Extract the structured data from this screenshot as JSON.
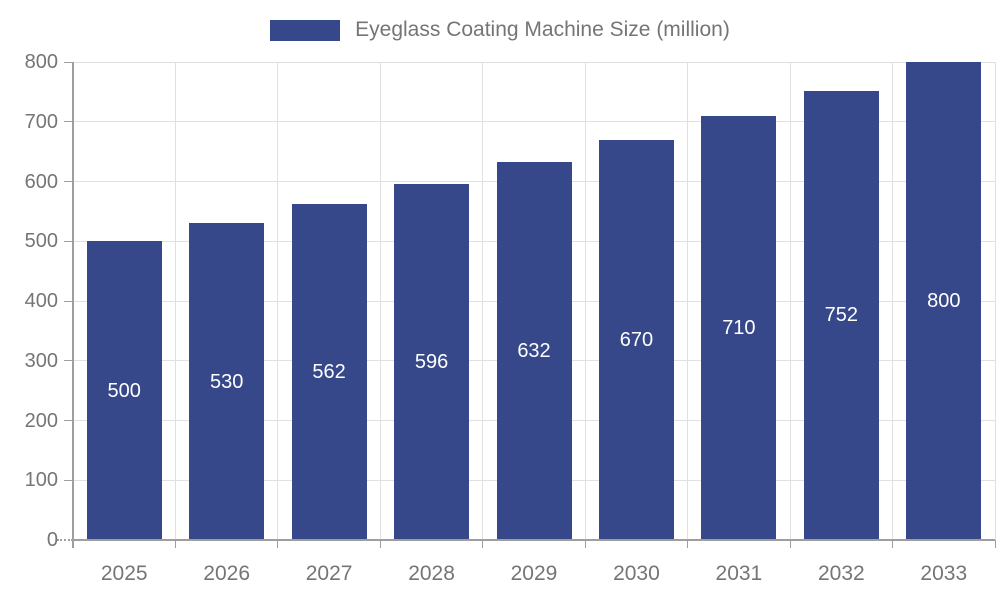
{
  "chart_data": {
    "type": "bar",
    "legend": "Eyeglass Coating Machine Size (million)",
    "legend_position": "top",
    "categories": [
      "2025",
      "2026",
      "2027",
      "2028",
      "2029",
      "2030",
      "2031",
      "2032",
      "2033"
    ],
    "values": [
      500,
      530,
      562,
      596,
      632,
      670,
      710,
      752,
      800
    ],
    "xlabel": "",
    "ylabel": "",
    "ylim": [
      0,
      800
    ],
    "y_ticks": [
      0,
      100,
      200,
      300,
      400,
      500,
      600,
      700,
      800
    ],
    "grid": true,
    "bar_labels_inside": true
  },
  "colors": {
    "bar": "#36488A",
    "grid": "#E0E0E0",
    "axis": "#9E9E9E",
    "text": "#757575",
    "bar_label": "#FFFFFF",
    "background": "#FFFFFF"
  }
}
